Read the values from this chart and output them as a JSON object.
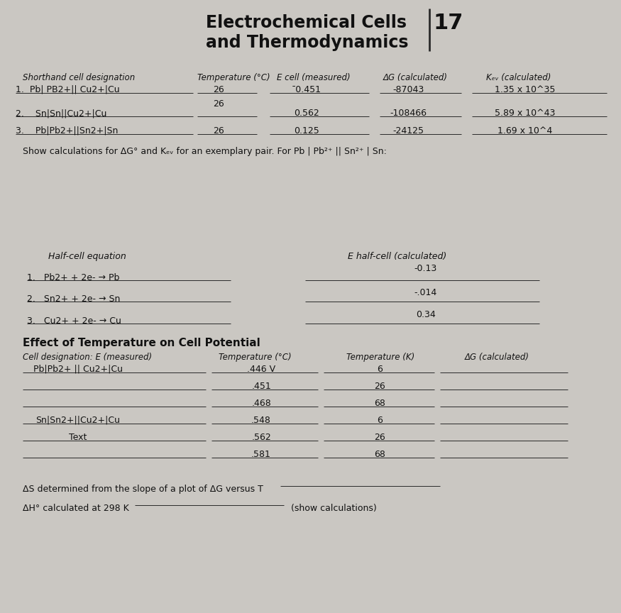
{
  "bg_color": "#cac7c2",
  "title_line1": "Electrochemical Cells",
  "title_line2": "and Thermodynamics",
  "chapter_num": "17"
}
